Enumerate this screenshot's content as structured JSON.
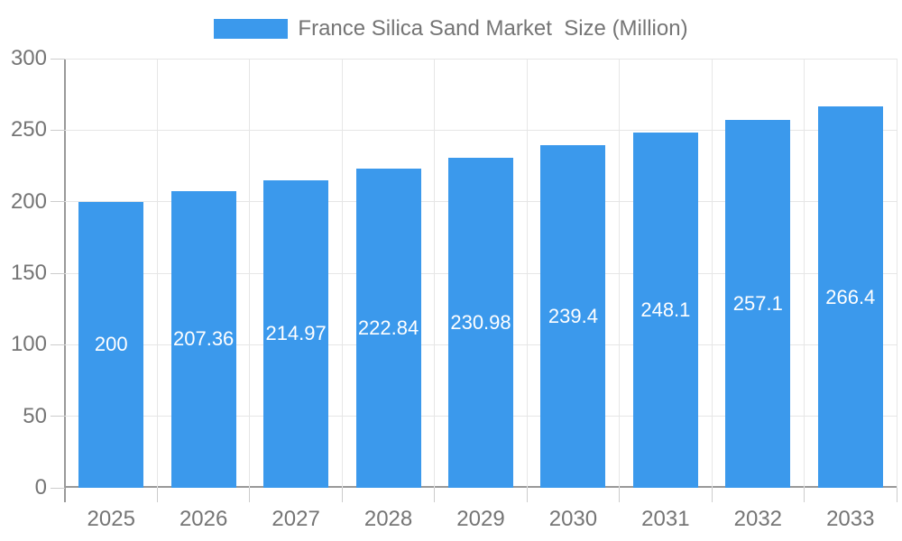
{
  "legend": {
    "label": "France Silica Sand Market  Size (Million)"
  },
  "chart_data": {
    "type": "bar",
    "title": "France Silica Sand Market  Size (Million)",
    "categories": [
      "2025",
      "2026",
      "2027",
      "2028",
      "2029",
      "2030",
      "2031",
      "2032",
      "2033"
    ],
    "values": [
      200,
      207.36,
      214.97,
      222.84,
      230.98,
      239.4,
      248.1,
      257.1,
      266.4
    ],
    "value_labels": [
      "200",
      "207.36",
      "214.97",
      "222.84",
      "230.98",
      "239.4",
      "248.1",
      "257.1",
      "266.4"
    ],
    "xlabel": "",
    "ylabel": "",
    "ylim": [
      0,
      300
    ],
    "yticks": [
      0,
      50,
      100,
      150,
      200,
      250,
      300
    ],
    "ytick_labels": [
      "0",
      "50",
      "100",
      "150",
      "200",
      "250",
      "300"
    ],
    "grid": true,
    "legend_position": "top"
  },
  "colors": {
    "bar": "#3B99EC",
    "axis_line": "#999999",
    "grid_line": "#e6e6e6",
    "tick_line": "#cccccc",
    "axis_label": "#757575",
    "legend_text": "#757575",
    "bar_label": "#ffffff",
    "background": "#ffffff"
  }
}
